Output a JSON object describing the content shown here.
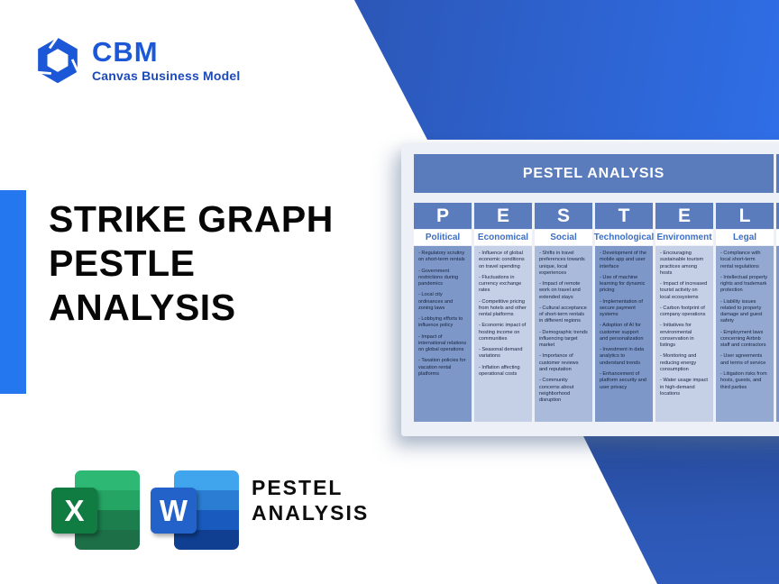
{
  "brand": {
    "abbr": "CBM",
    "tagline": "Canvas Business Model"
  },
  "hero_title": {
    "line1": "STRIKE GRAPH",
    "line2": "PESTLE",
    "line3": "ANALYSIS"
  },
  "preview": {
    "title": "PESTEL ANALYSIS",
    "columns": [
      {
        "letter": "P",
        "name": "Political",
        "bg": "#7d97c8",
        "items": [
          "- Regulatory scrutiny on short-term rentals",
          "- Government restrictions during pandemics",
          "- Local city ordinances and zoning laws",
          "- Lobbying efforts to influence policy",
          "- Impact of international relations on global operations",
          "- Taxation policies for vacation rental platforms"
        ]
      },
      {
        "letter": "E",
        "name": "Economical",
        "bg": "#c5d0e6",
        "items": [
          "- Influence of global economic conditions on travel spending",
          "- Fluctuations in currency exchange rates",
          "- Competitive pricing from hotels and other rental platforms",
          "- Economic impact of hosting income on communities",
          "- Seasonal demand variations",
          "- Inflation affecting operational costs"
        ]
      },
      {
        "letter": "S",
        "name": "Social",
        "bg": "#a9badb",
        "items": [
          "- Shifts in travel preferences towards unique, local experiences",
          "- Impact of remote work on travel and extended stays",
          "- Cultural acceptance of short-term rentals in different regions",
          "- Demographic trends influencing target market",
          "- Importance of customer reviews and reputation",
          "- Community concerns about neighborhood disruption"
        ]
      },
      {
        "letter": "T",
        "name": "Technological",
        "bg": "#7d97c8",
        "items": [
          "- Development of the mobile app and user interface",
          "- Use of machine learning for dynamic pricing",
          "- Implementation of secure payment systems",
          "- Adoption of AI for customer support and personalization",
          "- Investment in data analytics to understand trends",
          "- Enhancement of platform security and user privacy"
        ]
      },
      {
        "letter": "E",
        "name": "Environment",
        "bg": "#c5d0e6",
        "items": [
          "- Encouraging sustainable tourism practices among hosts",
          "- Impact of increased tourist activity on local ecosystems",
          "- Carbon footprint of company operations",
          "- Initiatives for environmental conservation in listings",
          "- Monitoring and reducing energy consumption",
          "- Water usage impact in high-demand locations"
        ]
      },
      {
        "letter": "L",
        "name": "Legal",
        "bg": "#93a9d2",
        "items": [
          "- Compliance with local short-term rental regulations",
          "- Intellectual property rights and trademark protection",
          "- Liability issues related to property damage and guest safety",
          "- Employment laws concerning Airbnb staff and contractors",
          "- User agreements and terms of service",
          "- Litigation risks from hosts, guests, and third parties"
        ]
      }
    ]
  },
  "footer": {
    "excel_letter": "X",
    "word_letter": "W",
    "label_line1": "PESTEL",
    "label_line2": "ANALYSIS"
  },
  "colors": {
    "brand_blue": "#1b57d6",
    "tagline_blue": "#1c4ab8",
    "left_bar": "#2577f0",
    "wedge_dark": "#2b4d9f",
    "wedge_bright": "#2f6ee6",
    "card_bg": "#edf1f7",
    "table_header": "#5b7cbc",
    "category_text": "#3b6ec5",
    "table_frame": "#7d97c8"
  }
}
